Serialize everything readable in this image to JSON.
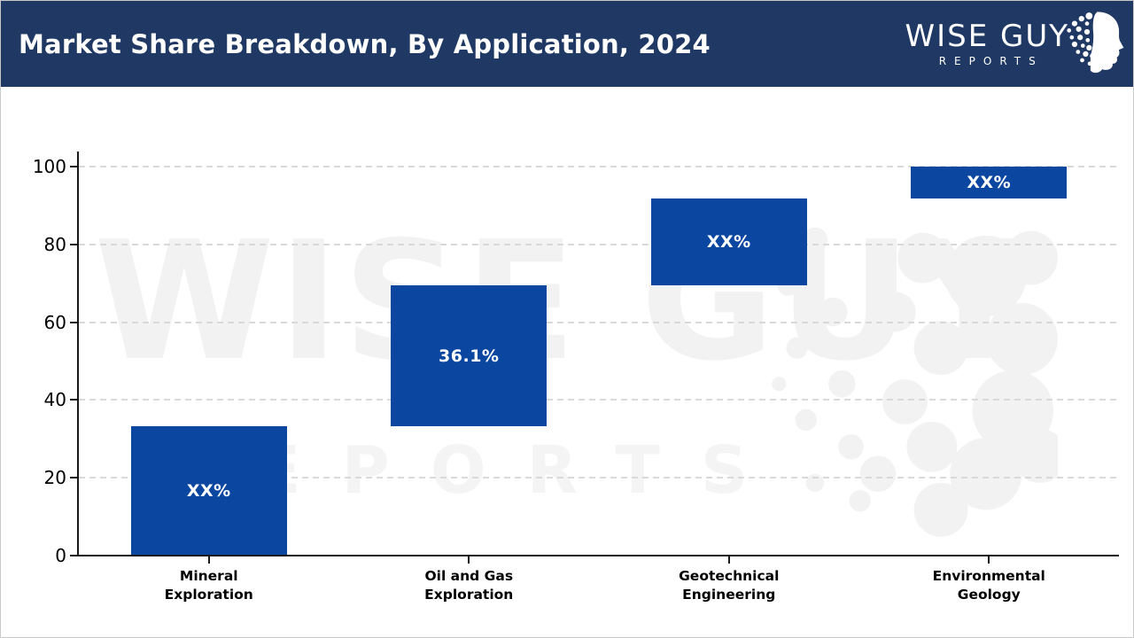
{
  "header": {
    "title": "Market Share Breakdown, By Application, 2024",
    "logo": {
      "brand": "WISE GUY",
      "sub": "REPORTS"
    }
  },
  "watermark": {
    "brand": "WISE GUY",
    "sub": "REPORTS"
  },
  "chart_data": {
    "type": "bar",
    "subtype": "floating-waterfall",
    "title": "Market Share Breakdown, By Application, 2024",
    "xlabel": "",
    "ylabel": "",
    "ylim": [
      0,
      100
    ],
    "y_ticks": [
      0,
      20,
      40,
      60,
      80,
      100
    ],
    "grid": "horizontal-dashed",
    "legend": "none",
    "bar_color": "#0b47a1",
    "value_label_color": "#ffffff",
    "categories": [
      {
        "name": "Mineral Exploration",
        "lines": [
          "Mineral",
          "Exploration"
        ]
      },
      {
        "name": "Oil and Gas Exploration",
        "lines": [
          "Oil and Gas",
          "Exploration"
        ]
      },
      {
        "name": "Geotechnical Engineering",
        "lines": [
          "Geotechnical",
          "Engineering"
        ]
      },
      {
        "name": "Environmental Geology",
        "lines": [
          "Environmental",
          "Geology"
        ]
      }
    ],
    "segments": [
      {
        "category": "Mineral Exploration",
        "start": 0,
        "end": 33.3,
        "value": 33.3,
        "label": "XX%"
      },
      {
        "category": "Oil and Gas Exploration",
        "start": 33.3,
        "end": 69.4,
        "value": 36.1,
        "label": "36.1%"
      },
      {
        "category": "Geotechnical Engineering",
        "start": 69.4,
        "end": 91.8,
        "value": 22.4,
        "label": "XX%"
      },
      {
        "category": "Environmental Geology",
        "start": 91.8,
        "end": 100,
        "value": 8.2,
        "label": "XX%"
      }
    ]
  },
  "colors": {
    "header_bg": "#1f3864",
    "bar": "#0b47a1",
    "gridline": "#d9d9d9",
    "axis": "#1a1a1a",
    "watermark": "#f2f2f2"
  }
}
